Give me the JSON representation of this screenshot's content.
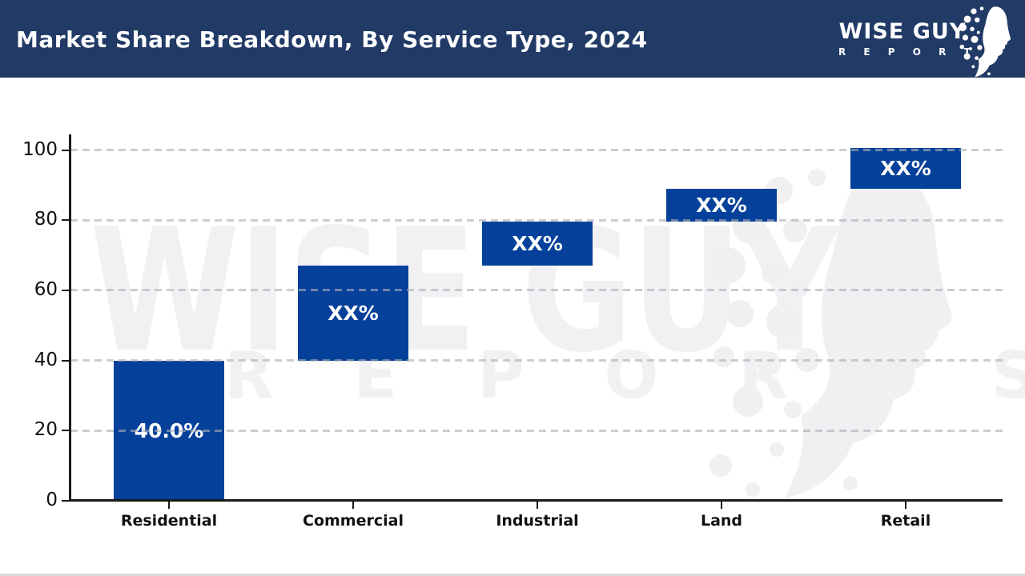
{
  "header": {
    "title": "Market Share Breakdown, By Service Type, 2024",
    "logo": {
      "line1": "WISE GUY",
      "line2": "R E P O R T S"
    }
  },
  "icons": {
    "logo_mark": "wiseguy-head-profile-dots-icon"
  },
  "watermark": {
    "line1": "WISE GUY",
    "line2": "R E P O R T S"
  },
  "colors": {
    "header_bg": "#213A66",
    "bar": "#05419A",
    "bar_label_text": "#FFFFFF",
    "axis": "#1A1A1A",
    "gridline": "#D9D9D9",
    "watermark": "#F1F1F4"
  },
  "chart_data": {
    "type": "bar",
    "variant": "waterfall",
    "title": "Market Share Breakdown, By Service Type, 2024",
    "categories": [
      "Residential",
      "Commercial",
      "Industrial",
      "Land",
      "Retail"
    ],
    "bar_labels": [
      "40.0%",
      "XX%",
      "XX%",
      "XX%",
      "XX%"
    ],
    "segment_start": [
      0,
      40,
      67,
      79.5,
      89
    ],
    "segment_end": [
      40,
      67,
      79.5,
      89,
      100.5
    ],
    "values_estimated_pct": [
      40,
      27,
      12.5,
      9.5,
      11.5
    ],
    "only_labeled_value": "Residential = 40.0%, all others masked as XX%",
    "yticks": [
      0,
      20,
      40,
      60,
      80,
      100
    ],
    "ylim": [
      0,
      105
    ],
    "xlabel": "",
    "ylabel": "",
    "grid": "dashed-horizontal",
    "legend": "none"
  }
}
